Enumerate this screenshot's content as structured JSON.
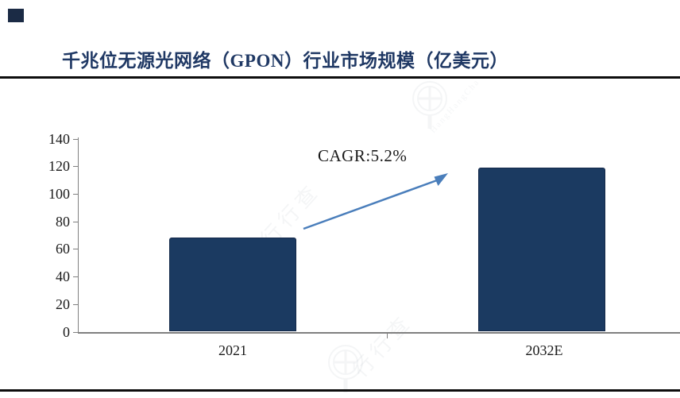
{
  "header": {
    "title": "千兆位无源光网络（GPON）行业市场规模（亿美元）"
  },
  "chart_data": {
    "type": "bar",
    "title": "千兆位无源光网络（GPON）行业市场规模（亿美元）",
    "categories": [
      "2021",
      "2032E"
    ],
    "values": [
      68,
      118.7
    ],
    "xlabel": "",
    "ylabel": "",
    "ylim": [
      0,
      140
    ],
    "yticks": [
      0,
      20,
      40,
      60,
      80,
      100,
      120,
      140
    ],
    "grid": false,
    "legend": false,
    "annotation": {
      "text": "CAGR:5.2%"
    }
  },
  "colors": {
    "bar": "#1b3a61",
    "bar_border": "#14294a",
    "title": "#1f3864",
    "arrow": "#4a7ebb",
    "axis": "#808080",
    "tick_label": "#1a1a1a",
    "rule": "#0d0d0d",
    "logo_square": "#1b2b45",
    "watermark": "#8c9aa8"
  },
  "watermark": {
    "text": "行行查",
    "subtext": "HangHangCha"
  }
}
